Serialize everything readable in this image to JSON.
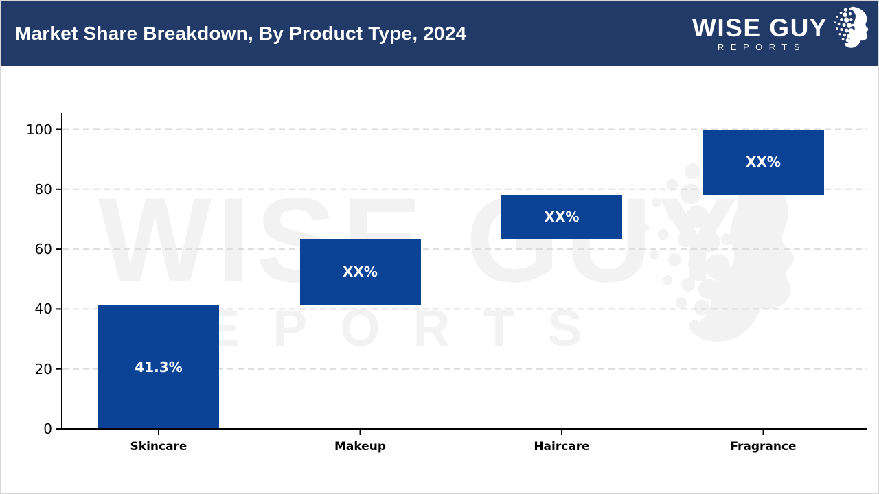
{
  "header": {
    "title": "Market Share Breakdown, By Product Type, 2024",
    "bg_color": "#213a68",
    "logo": {
      "line1": "WISE GUY",
      "line2": "REPORTS"
    }
  },
  "watermark": {
    "line1": "WISE GUY",
    "line2": "REPORTS"
  },
  "chart_data": {
    "type": "bar",
    "variant": "waterfall",
    "title": "Market Share Breakdown, By Product Type, 2024",
    "categories": [
      "Skincare",
      "Makeup",
      "Haircare",
      "Fragrance"
    ],
    "segments": [
      {
        "category": "Skincare",
        "start": 0,
        "end": 41.3,
        "label": "41.3%"
      },
      {
        "category": "Makeup",
        "start": 41.3,
        "end": 63.4,
        "label": "XX%"
      },
      {
        "category": "Haircare",
        "start": 63.4,
        "end": 78.1,
        "label": "XX%"
      },
      {
        "category": "Fragrance",
        "start": 78.1,
        "end": 100,
        "label": "XX%"
      }
    ],
    "xlabel": "",
    "ylabel": "",
    "ylim": [
      0,
      100
    ],
    "yticks": [
      0,
      20,
      40,
      60,
      80,
      100
    ],
    "grid": "horizontal-dashed",
    "legend": "none",
    "bar_color": "#0a4396",
    "bar_label_color": "#ffffff",
    "grid_color": "#dcdcdc",
    "axis_color": "#000000"
  }
}
